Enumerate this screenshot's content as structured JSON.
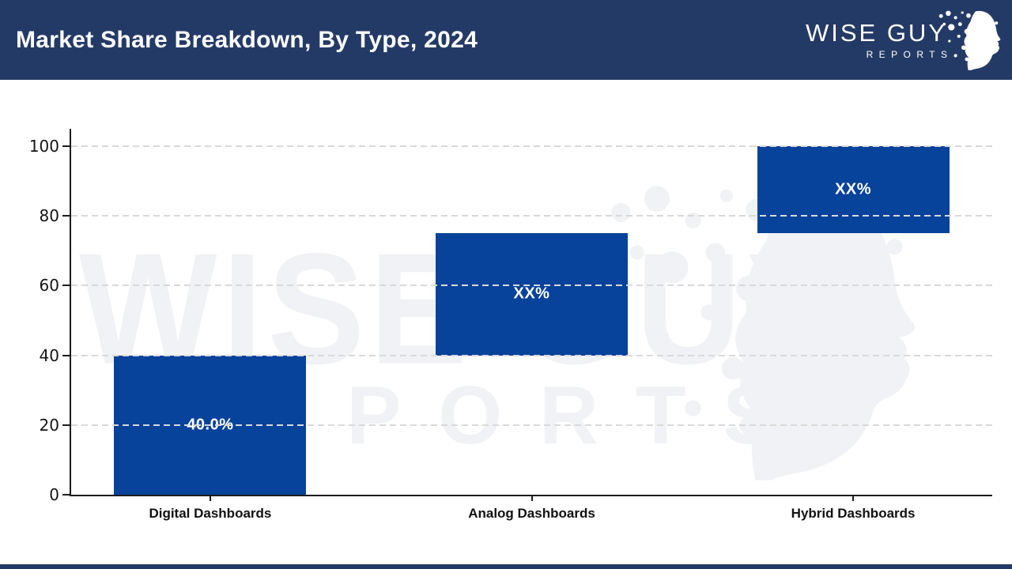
{
  "header": {
    "title": "Market Share Breakdown, By Type, 2024",
    "logo": {
      "line1": "WISE GUY",
      "line2": "REPORTS"
    }
  },
  "watermark": {
    "line1": "WISE GUY",
    "line2": "REPORTS"
  },
  "colors": {
    "header_bg": "#243a66",
    "bar": "#07429b",
    "grid": "#d9d9d9",
    "watermark": "#f1f2f5",
    "axis": "#1c1c1c",
    "bar_label_text": "#ffffff",
    "title_text": "#ffffff"
  },
  "chart_data": {
    "type": "bar",
    "subtype": "floating-waterfall",
    "title": "Market Share Breakdown, By Type, 2024",
    "categories": [
      "Digital Dashboards",
      "Analog Dashboards",
      "Hybrid Dashboards"
    ],
    "segments": [
      {
        "category": "Digital Dashboards",
        "start": 0,
        "end": 40,
        "value_pct": 40,
        "label": "40.0%"
      },
      {
        "category": "Analog Dashboards",
        "start": 40,
        "end": 75,
        "value_pct": 35,
        "label": "XX%"
      },
      {
        "category": "Hybrid Dashboards",
        "start": 75,
        "end": 100,
        "value_pct": 25,
        "label": "XX%"
      }
    ],
    "yticks": [
      0,
      20,
      40,
      60,
      80,
      100
    ],
    "ylim": [
      0,
      105
    ],
    "xlabel": "",
    "ylabel": "",
    "grid": "horizontal dashed, drawn above bars",
    "legend": "none"
  }
}
